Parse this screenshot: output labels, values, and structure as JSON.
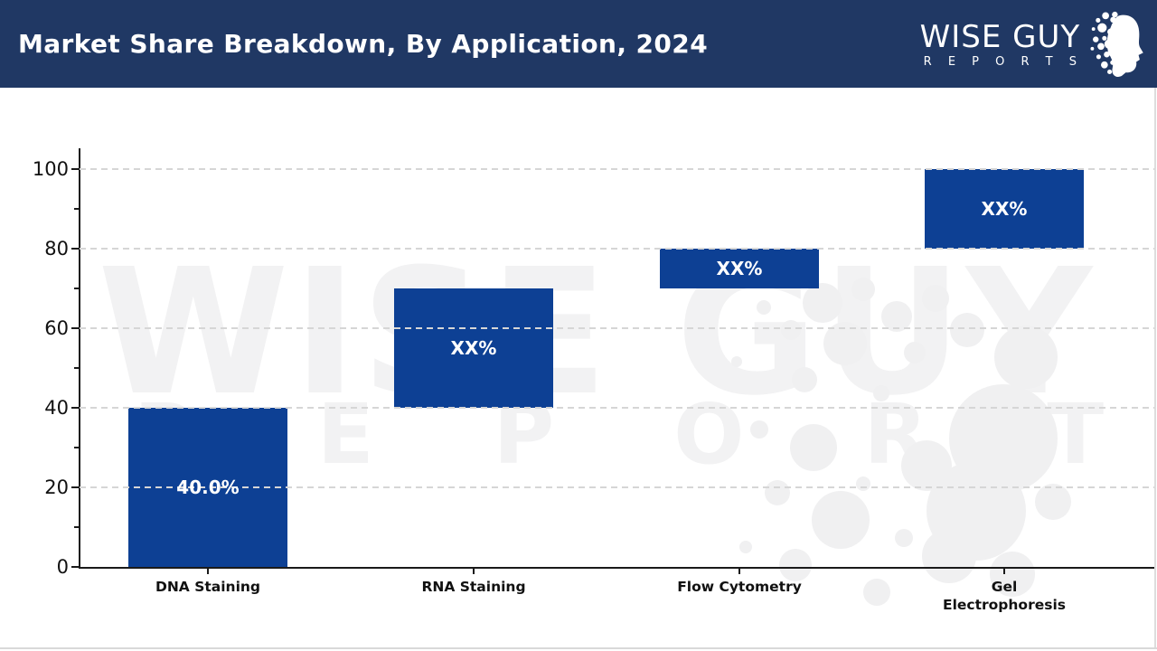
{
  "header": {
    "title": "Market Share Breakdown, By Application, 2024",
    "logo": {
      "brand": "WISE GUY",
      "sub": "R E P O R T S"
    }
  },
  "watermark": {
    "brand": "WISE GUY",
    "sub": "R E P O R T S"
  },
  "colors": {
    "header_bg": "#203864",
    "bar": "#0d4094",
    "axis": "#1a1a1a",
    "gridline": "#d6d6d6",
    "watermark": "#f2f2f3",
    "value_label": "#ffffff"
  },
  "chart_data": {
    "type": "bar",
    "subtype": "waterfall",
    "title": "Market Share Breakdown, By Application, 2024",
    "categories": [
      "DNA Staining",
      "RNA Staining",
      "Flow Cytometry",
      "Gel Electrophoresis"
    ],
    "bars": [
      {
        "category": "DNA Staining",
        "start": 0,
        "end": 40,
        "value_label": "40.0%"
      },
      {
        "category": "RNA Staining",
        "start": 40,
        "end": 70,
        "value_label": "XX%"
      },
      {
        "category": "Flow Cytometry",
        "start": 70,
        "end": 80,
        "value_label": "XX%"
      },
      {
        "category": "Gel Electrophoresis",
        "start": 80,
        "end": 100,
        "value_label": "XX%"
      }
    ],
    "xlabel": "",
    "ylabel": "",
    "ylim": [
      0,
      100
    ],
    "yticks": [
      0,
      20,
      40,
      60,
      80,
      100
    ],
    "yticks_minor": [
      10,
      30,
      50,
      70,
      90
    ],
    "grid": {
      "axis": "y",
      "style": "dashed",
      "over_bars": true
    },
    "legend": "none"
  }
}
